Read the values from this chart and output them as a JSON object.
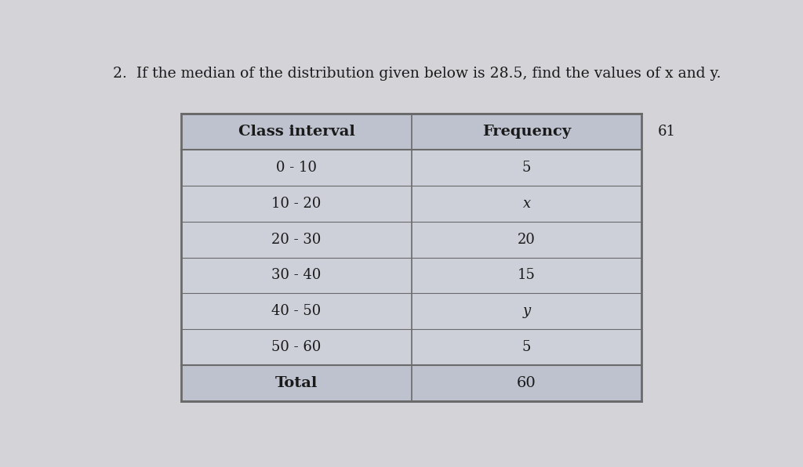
{
  "title": "2.  If the median of the distribution given below is 28.5, find the values of x and y.",
  "col1_header": "Class interval",
  "col2_header": "Frequency",
  "rows": [
    [
      "0 - 10",
      "5"
    ],
    [
      "10 - 20",
      "x"
    ],
    [
      "20 - 30",
      "20"
    ],
    [
      "30 - 40",
      "15"
    ],
    [
      "40 - 50",
      "y"
    ],
    [
      "50 - 60",
      "5"
    ]
  ],
  "total_label": "Total",
  "total_value": "60",
  "side_note": "61",
  "page_bg": "#d4d4d8",
  "table_bg": "#cdd0d9",
  "header_bg": "#bec2ce",
  "total_bg": "#bec2ce",
  "text_color": "#1a1a1a",
  "border_color": "#6a6a6a",
  "title_fontsize": 13.5,
  "header_fontsize": 14,
  "cell_fontsize": 13,
  "total_fontsize": 14
}
